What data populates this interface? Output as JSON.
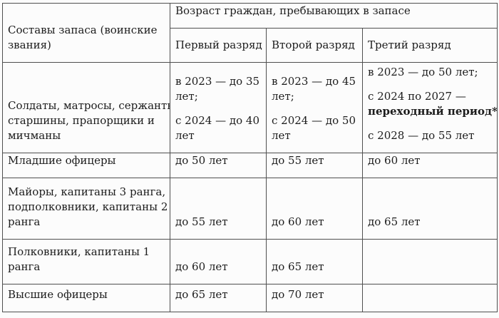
{
  "colors": {
    "border": "#4f4f4f",
    "text": "#1c1c1c",
    "background": "#fcfcfc"
  },
  "table": {
    "header": {
      "stub": "Составы запаса (воинские\nзвания)",
      "group": "Возраст граждан, пребывающих в запасе",
      "categories": [
        "Первый разряд",
        "Второй разряд",
        "Третий разряд"
      ]
    },
    "rows": [
      {
        "name": "Солдаты, матросы, сержанты,\nстаршины, прапорщики и\nмичманы",
        "cat1": [
          "в 2023 — до 35\nлет;",
          "с 2024 — до 40\nлет"
        ],
        "cat2": [
          "в 2023 — до 45\nлет;",
          "с 2024 — до 50\nлет"
        ],
        "cat3_p1": "в 2023 — до 50 лет;",
        "cat3_p2_pre": "с 2024 по 2027 —\n",
        "cat3_p2_bold": "переходный период*",
        "cat3_p2_post": ";",
        "cat3_p3": "с 2028 — до 55 лет"
      },
      {
        "name": "Младшие офицеры",
        "values": [
          "до 50 лет",
          "до 55 лет",
          "до 60 лет"
        ]
      },
      {
        "name": "Майоры, капитаны 3 ранга,\nподполковники, капитаны 2\nранга",
        "values": [
          "до 55 лет",
          "до 60 лет",
          "до 65 лет"
        ]
      },
      {
        "name": "Полковники, капитаны 1\nранга",
        "values": [
          "до 60 лет",
          "до 65 лет",
          ""
        ]
      },
      {
        "name": "Высшие офицеры",
        "values": [
          "до 65 лет",
          "до 70 лет",
          ""
        ]
      }
    ]
  }
}
